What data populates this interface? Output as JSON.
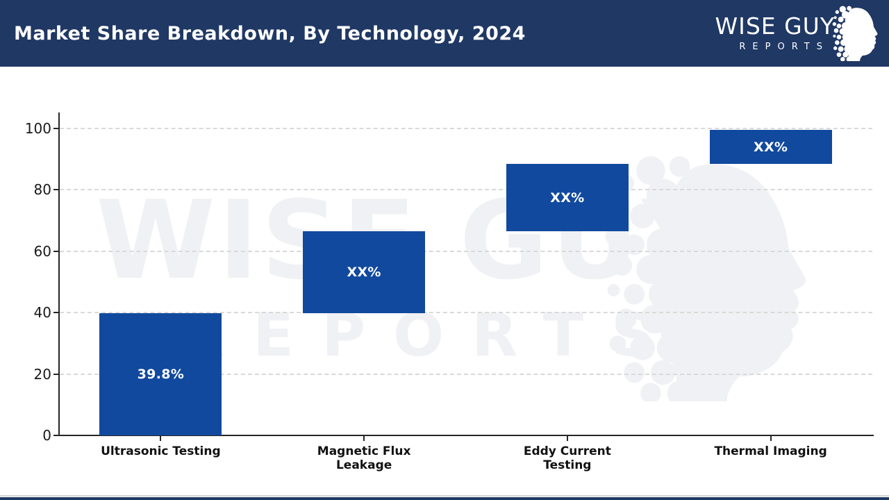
{
  "header": {
    "title": "Market Share Breakdown, By Technology, 2024",
    "bg_color": "#1f3864",
    "brand": {
      "line1": "WISE GUY",
      "line2": "REPORTS"
    }
  },
  "watermark": {
    "line1": "WISE GUY",
    "line2": "REPORTS"
  },
  "footer": {
    "bar_color": "#1f3864"
  },
  "chart_data": {
    "type": "bar",
    "subtype": "waterfall",
    "title": "Market Share Breakdown, By Technology, 2024",
    "categories": [
      "Ultrasonic Testing",
      "Magnetic Flux Leakage",
      "Eddy Current Testing",
      "Thermal Imaging"
    ],
    "category_label_lines": [
      [
        "Ultrasonic Testing"
      ],
      [
        "Magnetic Flux",
        "Leakage"
      ],
      [
        "Eddy Current",
        "Testing"
      ],
      [
        "Thermal Imaging"
      ]
    ],
    "segments": [
      {
        "start": 0,
        "end": 39.8,
        "height": 39.8,
        "label": "39.8%"
      },
      {
        "start": 39.8,
        "end": 66.5,
        "height": 26.7,
        "label": "XX%"
      },
      {
        "start": 66.5,
        "end": 88.4,
        "height": 21.9,
        "label": "XX%"
      },
      {
        "start": 88.4,
        "end": 99.6,
        "height": 11.2,
        "label": "XX%"
      }
    ],
    "y_ticks": [
      0,
      20,
      40,
      60,
      80,
      100
    ],
    "ylim": [
      0,
      105
    ],
    "xlabel": "",
    "ylabel": "",
    "grid": "horizontal dashed",
    "legend": "none",
    "bar_color": "#11499e",
    "bar_label_color": "#ffffff",
    "axis_color": "#262626",
    "tick_label_color": "#1a1a1a"
  }
}
